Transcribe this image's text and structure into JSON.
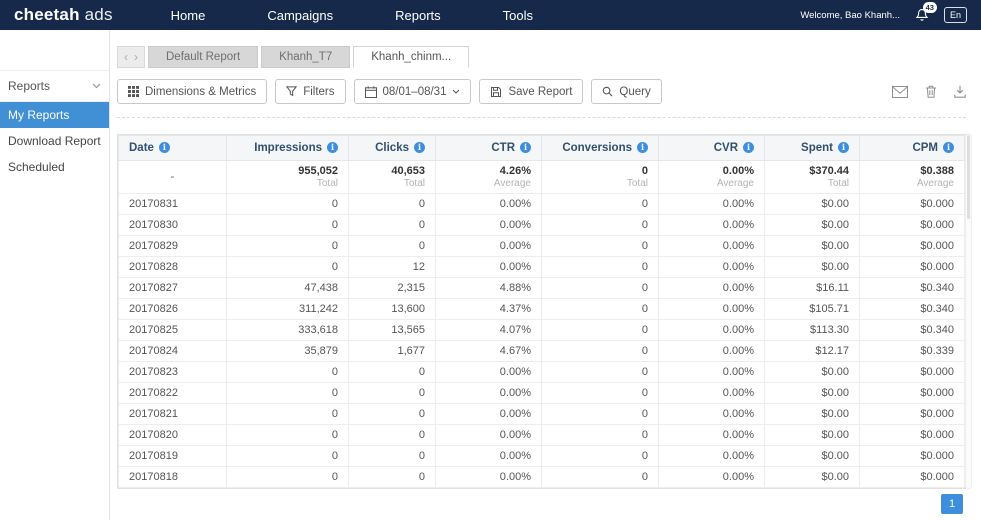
{
  "navbar": {
    "logo_bold": "cheetah",
    "logo_light": "ads",
    "items": [
      "Home",
      "Campaigns",
      "Reports",
      "Tools"
    ],
    "welcome": "Welcome,",
    "username": "Bao Khanh...",
    "notification_count": "43",
    "language": "En"
  },
  "sidebar": {
    "section_label": "Reports",
    "items": [
      {
        "label": "My Reports",
        "active": true
      },
      {
        "label": "Download Report",
        "active": false
      },
      {
        "label": "Scheduled",
        "active": false
      }
    ]
  },
  "tabs": [
    {
      "label": "Default Report",
      "active": false
    },
    {
      "label": "Khanh_T7",
      "active": false
    },
    {
      "label": "Khanh_chinm...",
      "active": true
    }
  ],
  "toolbar": {
    "dimensions_metrics_label": "Dimensions & Metrics",
    "filters_label": "Filters",
    "date_range": "08/01–08/31",
    "save_report_label": "Save Report",
    "query_label": "Query"
  },
  "table": {
    "columns": [
      "Date",
      "Impressions",
      "Clicks",
      "CTR",
      "Conversions",
      "CVR",
      "Spent",
      "CPM"
    ],
    "summary": {
      "date": "-",
      "cells": [
        {
          "value": "955,052",
          "sub": "Total"
        },
        {
          "value": "40,653",
          "sub": "Total"
        },
        {
          "value": "4.26%",
          "sub": "Average"
        },
        {
          "value": "0",
          "sub": "Total"
        },
        {
          "value": "0.00%",
          "sub": "Average"
        },
        {
          "value": "$370.44",
          "sub": "Total"
        },
        {
          "value": "$0.388",
          "sub": "Average"
        }
      ]
    },
    "rows": [
      [
        "20170831",
        "0",
        "0",
        "0.00%",
        "0",
        "0.00%",
        "$0.00",
        "$0.000"
      ],
      [
        "20170830",
        "0",
        "0",
        "0.00%",
        "0",
        "0.00%",
        "$0.00",
        "$0.000"
      ],
      [
        "20170829",
        "0",
        "0",
        "0.00%",
        "0",
        "0.00%",
        "$0.00",
        "$0.000"
      ],
      [
        "20170828",
        "0",
        "12",
        "0.00%",
        "0",
        "0.00%",
        "$0.00",
        "$0.000"
      ],
      [
        "20170827",
        "47,438",
        "2,315",
        "4.88%",
        "0",
        "0.00%",
        "$16.11",
        "$0.340"
      ],
      [
        "20170826",
        "311,242",
        "13,600",
        "4.37%",
        "0",
        "0.00%",
        "$105.71",
        "$0.340"
      ],
      [
        "20170825",
        "333,618",
        "13,565",
        "4.07%",
        "0",
        "0.00%",
        "$113.30",
        "$0.340"
      ],
      [
        "20170824",
        "35,879",
        "1,677",
        "4.67%",
        "0",
        "0.00%",
        "$12.17",
        "$0.339"
      ],
      [
        "20170823",
        "0",
        "0",
        "0.00%",
        "0",
        "0.00%",
        "$0.00",
        "$0.000"
      ],
      [
        "20170822",
        "0",
        "0",
        "0.00%",
        "0",
        "0.00%",
        "$0.00",
        "$0.000"
      ],
      [
        "20170821",
        "0",
        "0",
        "0.00%",
        "0",
        "0.00%",
        "$0.00",
        "$0.000"
      ],
      [
        "20170820",
        "0",
        "0",
        "0.00%",
        "0",
        "0.00%",
        "$0.00",
        "$0.000"
      ],
      [
        "20170819",
        "0",
        "0",
        "0.00%",
        "0",
        "0.00%",
        "$0.00",
        "$0.000"
      ],
      [
        "20170818",
        "0",
        "0",
        "0.00%",
        "0",
        "0.00%",
        "$0.00",
        "$0.000"
      ]
    ]
  },
  "pagination": {
    "current_page": "1"
  },
  "colors": {
    "navbar_bg": "#16294a",
    "accent_blue": "#3e8ede",
    "active_sidebar_bg": "#4190d5"
  }
}
